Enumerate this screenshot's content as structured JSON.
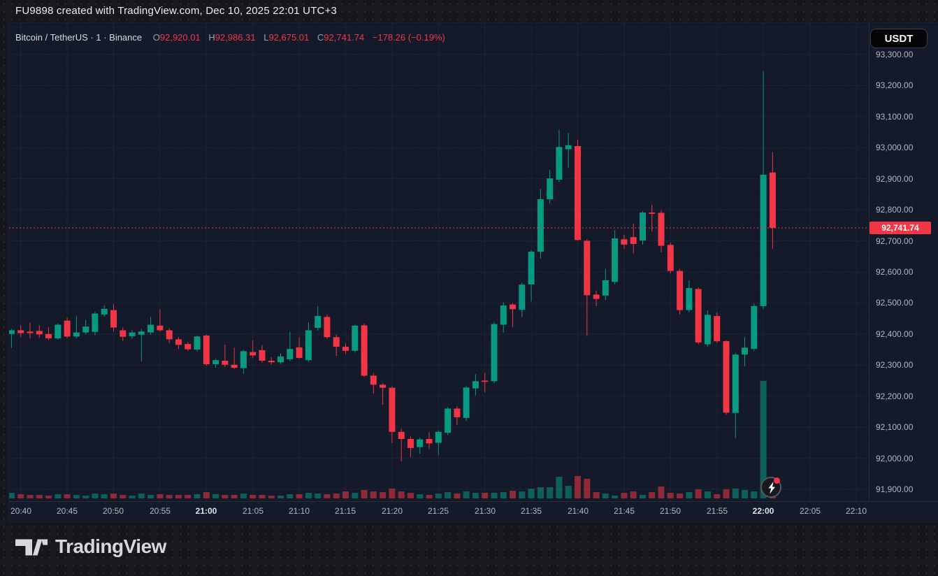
{
  "page": {
    "title_bar": "FU9898 created with TradingView.com, Dec 10, 2025 22:01 UTC+3"
  },
  "header": {
    "symbol": "Bitcoin / TetherUS · 1 · Binance",
    "ohlc": {
      "o_label": "O",
      "o": "92,920.01",
      "h_label": "H",
      "h": "92,986.31",
      "l_label": "L",
      "l": "92,675.01",
      "c_label": "C",
      "c": "92,741.74",
      "change": "−178.26 (−0.19%)"
    },
    "currency_button": "USDT"
  },
  "footer": {
    "logo_text": "TradingView"
  },
  "colors": {
    "up": "#089981",
    "down": "#f23645",
    "badge_bg": "#f23645",
    "price_line": "#f23645",
    "grid": "#1d2433",
    "axis_text": "#b2b5be"
  },
  "chart_data": {
    "type": "candlestick",
    "title": "Bitcoin / TetherUS, 1 minute, Binance",
    "x_labels": [
      "20:40",
      "20:45",
      "20:50",
      "20:55",
      "21:00",
      "21:05",
      "21:10",
      "21:15",
      "21:20",
      "21:25",
      "21:30",
      "21:35",
      "21:40",
      "21:45",
      "21:50",
      "21:55",
      "22:00",
      "22:05",
      "22:10"
    ],
    "x_bold": [
      "21:00",
      "22:00"
    ],
    "y_min": 91900,
    "y_max": 93300,
    "y_step": 100,
    "y_labels": [
      "93,300.00",
      "93,200.00",
      "93,100.00",
      "93,000.00",
      "92,900.00",
      "92,800.00",
      "92,700.00",
      "92,600.00",
      "92,500.00",
      "92,400.00",
      "92,300.00",
      "92,200.00",
      "92,100.00",
      "92,000.00",
      "91,900.00"
    ],
    "last_price": 92741.74,
    "last_price_label": "92,741.74",
    "columns": [
      "time",
      "open",
      "high",
      "low",
      "close",
      "volume"
    ],
    "candles": [
      [
        "20:39",
        92400,
        92416,
        92355,
        92412,
        8
      ],
      [
        "20:40",
        92412,
        92428,
        92390,
        92403,
        6
      ],
      [
        "20:41",
        92408,
        92437,
        92386,
        92403,
        5
      ],
      [
        "20:42",
        92410,
        92428,
        92388,
        92399,
        5
      ],
      [
        "20:43",
        92400,
        92421,
        92380,
        92386,
        4
      ],
      [
        "20:44",
        92386,
        92434,
        92382,
        92430,
        6
      ],
      [
        "20:45",
        92443,
        92452,
        92388,
        92392,
        6
      ],
      [
        "20:46",
        92392,
        92457,
        92386,
        92405,
        5
      ],
      [
        "20:47",
        92405,
        92445,
        92399,
        92424,
        4
      ],
      [
        "20:48",
        92407,
        92472,
        92396,
        92466,
        7
      ],
      [
        "20:49",
        92463,
        92493,
        92456,
        92481,
        6
      ],
      [
        "20:50",
        92477,
        92496,
        92408,
        92421,
        7
      ],
      [
        "20:51",
        92412,
        92421,
        92378,
        92391,
        5
      ],
      [
        "20:52",
        92393,
        92412,
        92384,
        92405,
        4
      ],
      [
        "20:53",
        92398,
        92416,
        92312,
        92408,
        7
      ],
      [
        "20:54",
        92405,
        92455,
        92398,
        92430,
        5
      ],
      [
        "20:55",
        92427,
        92479,
        92408,
        92412,
        6
      ],
      [
        "20:56",
        92412,
        92419,
        92370,
        92383,
        5
      ],
      [
        "20:57",
        92383,
        92390,
        92352,
        92365,
        5
      ],
      [
        "20:58",
        92368,
        92375,
        92346,
        92351,
        5
      ],
      [
        "20:59",
        92350,
        92394,
        92344,
        92392,
        6
      ],
      [
        "21:00",
        92395,
        92398,
        92298,
        92303,
        9
      ],
      [
        "21:01",
        92303,
        92320,
        92291,
        92316,
        6
      ],
      [
        "21:02",
        92314,
        92366,
        92294,
        92301,
        5
      ],
      [
        "21:03",
        92301,
        92356,
        92288,
        92291,
        5
      ],
      [
        "21:04",
        92290,
        92348,
        92272,
        92345,
        7
      ],
      [
        "21:05",
        92342,
        92380,
        92322,
        92331,
        5
      ],
      [
        "21:06",
        92348,
        92364,
        92308,
        92314,
        5
      ],
      [
        "21:07",
        92314,
        92326,
        92302,
        92309,
        4
      ],
      [
        "21:08",
        92309,
        92338,
        92303,
        92328,
        4
      ],
      [
        "21:09",
        92319,
        92407,
        92312,
        92352,
        6
      ],
      [
        "21:10",
        92357,
        92390,
        92321,
        92323,
        6
      ],
      [
        "21:11",
        92316,
        92438,
        92310,
        92412,
        8
      ],
      [
        "21:12",
        92420,
        92490,
        92411,
        92458,
        7
      ],
      [
        "21:13",
        92455,
        92462,
        92385,
        92390,
        6
      ],
      [
        "21:14",
        92390,
        92398,
        92330,
        92359,
        7
      ],
      [
        "21:15",
        92359,
        92370,
        92336,
        92346,
        10
      ],
      [
        "21:16",
        92346,
        92430,
        92340,
        92427,
        8
      ],
      [
        "21:17",
        92428,
        92434,
        92262,
        92266,
        12
      ],
      [
        "21:18",
        92266,
        92274,
        92208,
        92237,
        10
      ],
      [
        "21:19",
        92237,
        92242,
        92172,
        92227,
        9
      ],
      [
        "21:20",
        92227,
        92232,
        92049,
        92085,
        14
      ],
      [
        "21:21",
        92085,
        92095,
        91990,
        92062,
        10
      ],
      [
        "21:22",
        92062,
        92070,
        92004,
        92033,
        8
      ],
      [
        "21:23",
        92036,
        92066,
        92014,
        92061,
        6
      ],
      [
        "21:24",
        92062,
        92085,
        92030,
        92048,
        5
      ],
      [
        "21:25",
        92050,
        92090,
        92010,
        92085,
        7
      ],
      [
        "21:26",
        92082,
        92165,
        92075,
        92160,
        9
      ],
      [
        "21:27",
        92160,
        92168,
        92107,
        92132,
        7
      ],
      [
        "21:28",
        92130,
        92232,
        92120,
        92228,
        10
      ],
      [
        "21:29",
        92225,
        92271,
        92202,
        92248,
        8
      ],
      [
        "21:30",
        92250,
        92275,
        92212,
        92246,
        8
      ],
      [
        "21:31",
        92248,
        92438,
        92242,
        92432,
        8
      ],
      [
        "21:32",
        92430,
        92502,
        92405,
        92492,
        9
      ],
      [
        "21:33",
        92495,
        92500,
        92423,
        92480,
        11
      ],
      [
        "21:34",
        92478,
        92565,
        92455,
        92559,
        10
      ],
      [
        "21:35",
        92560,
        92670,
        92505,
        92665,
        14
      ],
      [
        "21:36",
        92665,
        92867,
        92643,
        92834,
        16
      ],
      [
        "21:37",
        92834,
        92928,
        92820,
        92901,
        16
      ],
      [
        "21:38",
        92897,
        93058,
        92890,
        93002,
        31
      ],
      [
        "21:39",
        92995,
        93048,
        92935,
        93008,
        18
      ],
      [
        "21:40",
        93005,
        93025,
        92700,
        92703,
        32
      ],
      [
        "21:41",
        92700,
        92705,
        92394,
        92525,
        28
      ],
      [
        "21:42",
        92527,
        92540,
        92490,
        92513,
        9
      ],
      [
        "21:43",
        92524,
        92610,
        92510,
        92573,
        7
      ],
      [
        "21:44",
        92568,
        92735,
        92560,
        92708,
        4
      ],
      [
        "21:45",
        92705,
        92720,
        92675,
        92688,
        8
      ],
      [
        "21:46",
        92712,
        92755,
        92658,
        92690,
        10
      ],
      [
        "21:47",
        92701,
        92796,
        92688,
        92791,
        5
      ],
      [
        "21:48",
        92791,
        92816,
        92730,
        92787,
        9
      ],
      [
        "21:49",
        92790,
        92798,
        92663,
        92684,
        17
      ],
      [
        "21:50",
        92687,
        92694,
        92595,
        92603,
        8
      ],
      [
        "21:51",
        92603,
        92610,
        92463,
        92477,
        7
      ],
      [
        "21:52",
        92477,
        92572,
        92470,
        92548,
        9
      ],
      [
        "21:53",
        92545,
        92550,
        92367,
        92373,
        13
      ],
      [
        "21:54",
        92367,
        92476,
        92360,
        92462,
        10
      ],
      [
        "21:55",
        92458,
        92470,
        92372,
        92377,
        6
      ],
      [
        "21:56",
        92377,
        92380,
        92140,
        92147,
        13
      ],
      [
        "21:57",
        92146,
        92340,
        92064,
        92334,
        14
      ],
      [
        "21:58",
        92334,
        92390,
        92296,
        92356,
        12
      ],
      [
        "21:59",
        92352,
        92498,
        92345,
        92490,
        10
      ],
      [
        "22:00",
        92490,
        93246,
        92480,
        92913,
        168
      ],
      [
        "22:01",
        92920,
        92986,
        92675,
        92742,
        12
      ]
    ]
  }
}
